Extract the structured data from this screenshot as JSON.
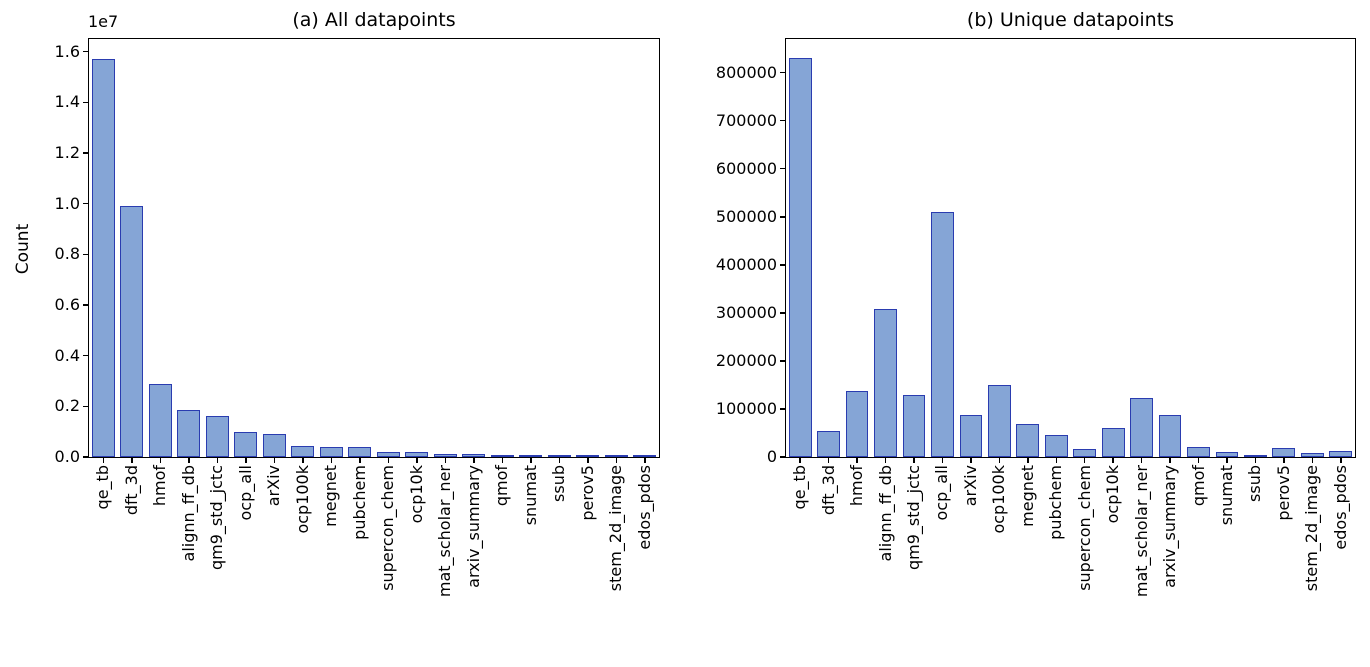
{
  "figure": {
    "background": "#ffffff"
  },
  "style": {
    "bar_fill": "#85a5d6",
    "bar_edge": "#2a3cb0",
    "axis_color": "#000000"
  },
  "chart_data": [
    {
      "type": "bar",
      "title": "(a) All datapoints",
      "ylabel": "Count",
      "y_scale_offset_label": "1e7",
      "xlabel": "",
      "grid": false,
      "legend": null,
      "categories": [
        "qe_tb",
        "dft_3d",
        "hmof",
        "alignn_ff_db",
        "qm9_std_jctc",
        "ocp_all",
        "arXiv",
        "ocp100k",
        "megnet",
        "pubchem",
        "supercon_chem",
        "ocp10k",
        "mat_scholar_ner",
        "arxiv_summary",
        "qmof",
        "snumat",
        "ssub",
        "perov5",
        "stem_2d_image",
        "edos_pdos"
      ],
      "values": [
        15700000,
        9900000,
        2900000,
        1850000,
        1600000,
        1000000,
        900000,
        450000,
        400000,
        380000,
        200000,
        180000,
        130000,
        100000,
        70000,
        40000,
        25000,
        20000,
        15000,
        12000
      ],
      "ylim": [
        0,
        16500000
      ],
      "yticks": [
        0,
        2000000,
        4000000,
        6000000,
        8000000,
        10000000,
        12000000,
        14000000,
        16000000
      ],
      "ytick_labels": [
        "0.0",
        "0.2",
        "0.4",
        "0.6",
        "0.8",
        "1.0",
        "1.2",
        "1.4",
        "1.6"
      ]
    },
    {
      "type": "bar",
      "title": "(b) Unique datapoints",
      "ylabel": "",
      "y_scale_offset_label": "",
      "xlabel": "",
      "grid": false,
      "legend": null,
      "categories": [
        "qe_tb",
        "dft_3d",
        "hmof",
        "alignn_ff_db",
        "qm9_std_jctc",
        "ocp_all",
        "arXiv",
        "ocp100k",
        "megnet",
        "pubchem",
        "supercon_chem",
        "ocp10k",
        "mat_scholar_ner",
        "arxiv_summary",
        "qmof",
        "snumat",
        "ssub",
        "perov5",
        "stem_2d_image",
        "edos_pdos"
      ],
      "values": [
        830000,
        55000,
        137000,
        307000,
        130000,
        510000,
        87000,
        149000,
        69000,
        45000,
        16000,
        60000,
        122000,
        87000,
        20000,
        10000,
        4000,
        18000,
        8000,
        13000
      ],
      "ylim": [
        0,
        870000
      ],
      "yticks": [
        0,
        100000,
        200000,
        300000,
        400000,
        500000,
        600000,
        700000,
        800000
      ],
      "ytick_labels": [
        "0",
        "100000",
        "200000",
        "300000",
        "400000",
        "500000",
        "600000",
        "700000",
        "800000"
      ]
    }
  ]
}
